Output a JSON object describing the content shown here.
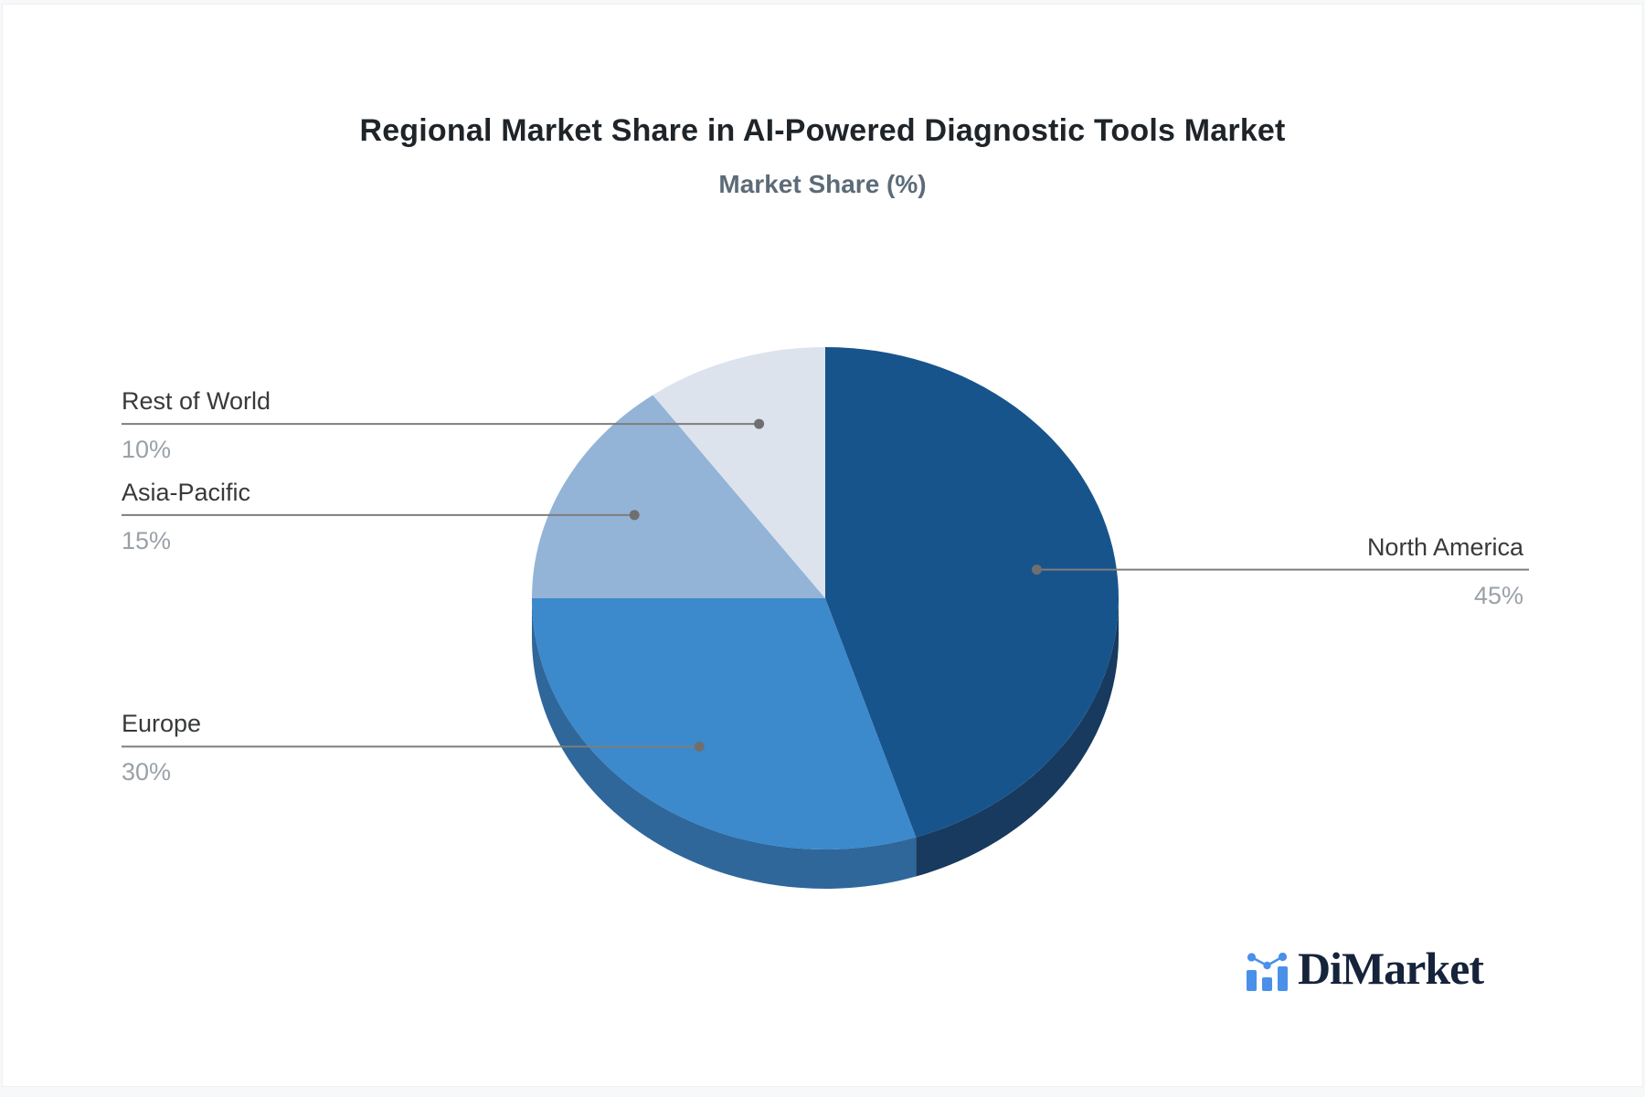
{
  "chart_data": {
    "type": "pie",
    "title": "Regional Market Share in AI-Powered Diagnostic Tools Market",
    "subtitle": "Market Share (%)",
    "style": "3d-pie",
    "start_angle_deg": 0,
    "direction": "clockwise",
    "leader_lines": true,
    "slices": [
      {
        "label": "North America",
        "value": 45,
        "percent_label": "45%",
        "color": "#18548C",
        "rim_color": "#173A5E"
      },
      {
        "label": "Europe",
        "value": 30,
        "percent_label": "30%",
        "color": "#3C89CB",
        "rim_color": "#2F679A"
      },
      {
        "label": "Asia-Pacific",
        "value": 15,
        "percent_label": "15%",
        "color": "#93B4D7",
        "rim_color": "#6E8CAD"
      },
      {
        "label": "Rest of World",
        "value": 10,
        "percent_label": "10%",
        "color": "#DCE3ED",
        "rim_color": "#A9B4C4"
      }
    ],
    "label_text_color": "#37393b",
    "percent_text_color": "#9aa1a8",
    "leader_line_color": "#7d7d7d",
    "leader_dot_color": "#6f6f6f"
  },
  "logo": {
    "text": "DiMarket",
    "icon": "bar-line-chart-icon",
    "icon_color": "#4a90e9",
    "text_color": "#15233b"
  }
}
